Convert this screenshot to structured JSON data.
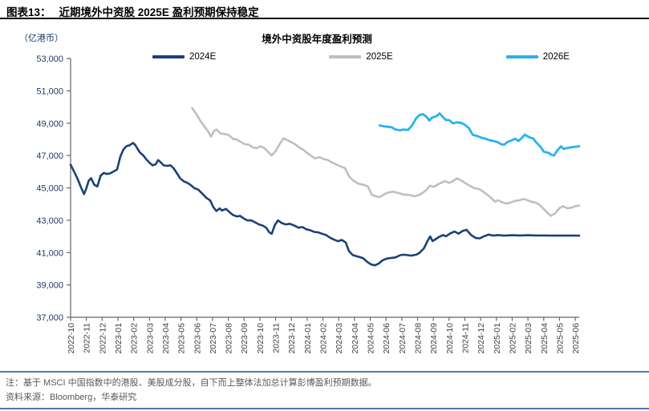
{
  "header": {
    "figure_label": "图表13：",
    "title": "近期境外中资股 2025E 盈利预期保持稳定"
  },
  "notes": {
    "note": "注：基于 MSCI 中国指数中的港股、美股成分股，自下而上整体法加总计算彭博盈利预期数据。",
    "source": "资料来源：Bloomberg，华泰研究"
  },
  "chart_data": {
    "type": "line",
    "title": "境外中资股年度盈利预测",
    "unit_label": "（亿港币）",
    "ylim": [
      37000,
      53000
    ],
    "ytick_step": 2000,
    "grid": "off",
    "legend_position": "top",
    "axis_label_color_y": "#1f3864",
    "axis_label_color_x": "#404040",
    "axis_line_color": "#666666",
    "categories": [
      "2022-10",
      "2022-11",
      "2022-12",
      "2023-01",
      "2023-02",
      "2023-03",
      "2023-04",
      "2023-05",
      "2023-06",
      "2023-07",
      "2023-08",
      "2023-09",
      "2023-10",
      "2023-11",
      "2023-12",
      "2024-01",
      "2024-02",
      "2024-03",
      "2024-04",
      "2024-05",
      "2024-06",
      "2024-07",
      "2024-08",
      "2024-09",
      "2024-10",
      "2024-11",
      "2024-12",
      "2025-01",
      "2025-02",
      "2025-03",
      "2025-04",
      "2025-05",
      "2025-06"
    ],
    "x_unit": "month_index_from_2022-10",
    "series": [
      {
        "name": "2024E",
        "color": "#1b4179",
        "stroke_width": 2.6,
        "points": [
          [
            0,
            46430
          ],
          [
            0.25,
            45950
          ],
          [
            0.45,
            45550
          ],
          [
            0.65,
            45050
          ],
          [
            0.85,
            44620
          ],
          [
            1.0,
            44980
          ],
          [
            1.15,
            45450
          ],
          [
            1.3,
            45600
          ],
          [
            1.5,
            45190
          ],
          [
            1.7,
            45090
          ],
          [
            1.9,
            45760
          ],
          [
            2.1,
            45920
          ],
          [
            2.3,
            45860
          ],
          [
            2.5,
            45890
          ],
          [
            2.75,
            46030
          ],
          [
            2.95,
            46140
          ],
          [
            3.15,
            46920
          ],
          [
            3.35,
            47380
          ],
          [
            3.55,
            47580
          ],
          [
            3.75,
            47640
          ],
          [
            3.95,
            47780
          ],
          [
            4.1,
            47650
          ],
          [
            4.25,
            47400
          ],
          [
            4.4,
            47180
          ],
          [
            4.6,
            47020
          ],
          [
            4.8,
            46760
          ],
          [
            5.0,
            46560
          ],
          [
            5.2,
            46390
          ],
          [
            5.4,
            46460
          ],
          [
            5.55,
            46720
          ],
          [
            5.7,
            46590
          ],
          [
            5.9,
            46390
          ],
          [
            6.1,
            46360
          ],
          [
            6.35,
            46390
          ],
          [
            6.55,
            46190
          ],
          [
            6.75,
            45890
          ],
          [
            6.95,
            45590
          ],
          [
            7.2,
            45390
          ],
          [
            7.4,
            45310
          ],
          [
            7.6,
            45190
          ],
          [
            7.85,
            44980
          ],
          [
            8.1,
            44890
          ],
          [
            8.35,
            44640
          ],
          [
            8.6,
            44390
          ],
          [
            8.85,
            44220
          ],
          [
            9.05,
            43810
          ],
          [
            9.25,
            43570
          ],
          [
            9.45,
            43730
          ],
          [
            9.6,
            43600
          ],
          [
            9.85,
            43700
          ],
          [
            10.1,
            43480
          ],
          [
            10.3,
            43320
          ],
          [
            10.55,
            43230
          ],
          [
            10.75,
            43270
          ],
          [
            11.0,
            43100
          ],
          [
            11.2,
            42990
          ],
          [
            11.45,
            42990
          ],
          [
            11.7,
            42870
          ],
          [
            11.95,
            42740
          ],
          [
            12.2,
            42660
          ],
          [
            12.4,
            42540
          ],
          [
            12.6,
            42250
          ],
          [
            12.75,
            42160
          ],
          [
            12.95,
            42700
          ],
          [
            13.15,
            42990
          ],
          [
            13.4,
            42820
          ],
          [
            13.65,
            42740
          ],
          [
            13.9,
            42780
          ],
          [
            14.2,
            42660
          ],
          [
            14.45,
            42540
          ],
          [
            14.7,
            42580
          ],
          [
            14.95,
            42440
          ],
          [
            15.2,
            42380
          ],
          [
            15.45,
            42280
          ],
          [
            15.7,
            42250
          ],
          [
            15.95,
            42160
          ],
          [
            16.2,
            42080
          ],
          [
            16.45,
            41920
          ],
          [
            16.7,
            41800
          ],
          [
            16.95,
            41700
          ],
          [
            17.2,
            41780
          ],
          [
            17.45,
            41620
          ],
          [
            17.65,
            41090
          ],
          [
            17.9,
            40840
          ],
          [
            18.2,
            40760
          ],
          [
            18.55,
            40650
          ],
          [
            18.8,
            40430
          ],
          [
            19.05,
            40270
          ],
          [
            19.3,
            40210
          ],
          [
            19.55,
            40330
          ],
          [
            19.8,
            40530
          ],
          [
            20.1,
            40640
          ],
          [
            20.35,
            40670
          ],
          [
            20.6,
            40700
          ],
          [
            20.9,
            40840
          ],
          [
            21.1,
            40870
          ],
          [
            21.4,
            40840
          ],
          [
            21.6,
            40810
          ],
          [
            21.9,
            40870
          ],
          [
            22.1,
            40970
          ],
          [
            22.4,
            41260
          ],
          [
            22.65,
            41750
          ],
          [
            22.8,
            42000
          ],
          [
            22.95,
            41710
          ],
          [
            23.1,
            41800
          ],
          [
            23.35,
            41960
          ],
          [
            23.6,
            42080
          ],
          [
            23.8,
            42010
          ],
          [
            24.1,
            42200
          ],
          [
            24.35,
            42300
          ],
          [
            24.6,
            42170
          ],
          [
            24.85,
            42330
          ],
          [
            25.1,
            42410
          ],
          [
            25.4,
            42080
          ],
          [
            25.7,
            41900
          ],
          [
            25.95,
            41880
          ],
          [
            26.2,
            42000
          ],
          [
            26.5,
            42110
          ],
          [
            26.8,
            42050
          ],
          [
            27.1,
            42080
          ],
          [
            27.5,
            42050
          ],
          [
            28.0,
            42070
          ],
          [
            28.5,
            42060
          ],
          [
            29.0,
            42070
          ],
          [
            29.5,
            42060
          ],
          [
            30.0,
            42060
          ],
          [
            30.5,
            42050
          ],
          [
            31.0,
            42050
          ],
          [
            31.5,
            42050
          ],
          [
            32.0,
            42050
          ],
          [
            32.25,
            42050
          ]
        ]
      },
      {
        "name": "2025E",
        "color": "#bfbfbf",
        "stroke_width": 2.6,
        "points": [
          [
            7.7,
            49940
          ],
          [
            8.0,
            49520
          ],
          [
            8.25,
            49110
          ],
          [
            8.5,
            48780
          ],
          [
            8.75,
            48450
          ],
          [
            8.9,
            48170
          ],
          [
            9.1,
            48530
          ],
          [
            9.25,
            48610
          ],
          [
            9.5,
            48370
          ],
          [
            9.75,
            48330
          ],
          [
            10.0,
            48280
          ],
          [
            10.3,
            48030
          ],
          [
            10.5,
            48000
          ],
          [
            10.8,
            47840
          ],
          [
            11.05,
            47700
          ],
          [
            11.3,
            47670
          ],
          [
            11.55,
            47500
          ],
          [
            11.8,
            47450
          ],
          [
            12.05,
            47570
          ],
          [
            12.3,
            47450
          ],
          [
            12.55,
            47200
          ],
          [
            12.75,
            47000
          ],
          [
            13.0,
            47280
          ],
          [
            13.25,
            47700
          ],
          [
            13.5,
            48060
          ],
          [
            13.75,
            47940
          ],
          [
            14.0,
            47830
          ],
          [
            14.25,
            47690
          ],
          [
            14.5,
            47490
          ],
          [
            14.75,
            47360
          ],
          [
            15.0,
            47160
          ],
          [
            15.3,
            46950
          ],
          [
            15.5,
            46830
          ],
          [
            15.8,
            46900
          ],
          [
            16.05,
            46780
          ],
          [
            16.3,
            46730
          ],
          [
            16.6,
            46560
          ],
          [
            16.9,
            46420
          ],
          [
            17.2,
            46300
          ],
          [
            17.4,
            46220
          ],
          [
            17.65,
            45720
          ],
          [
            17.9,
            45470
          ],
          [
            18.25,
            45260
          ],
          [
            18.6,
            45190
          ],
          [
            18.85,
            45090
          ],
          [
            19.1,
            44560
          ],
          [
            19.35,
            44480
          ],
          [
            19.6,
            44430
          ],
          [
            19.95,
            44640
          ],
          [
            20.2,
            44730
          ],
          [
            20.45,
            44760
          ],
          [
            20.8,
            44680
          ],
          [
            21.1,
            44590
          ],
          [
            21.5,
            44560
          ],
          [
            21.8,
            44480
          ],
          [
            22.1,
            44560
          ],
          [
            22.5,
            44810
          ],
          [
            22.8,
            45140
          ],
          [
            23.0,
            45060
          ],
          [
            23.25,
            45190
          ],
          [
            23.5,
            45320
          ],
          [
            23.75,
            45420
          ],
          [
            24.0,
            45310
          ],
          [
            24.25,
            45420
          ],
          [
            24.5,
            45590
          ],
          [
            24.75,
            45470
          ],
          [
            25.0,
            45310
          ],
          [
            25.4,
            45090
          ],
          [
            25.6,
            44980
          ],
          [
            25.9,
            44930
          ],
          [
            26.1,
            44810
          ],
          [
            26.4,
            44590
          ],
          [
            26.65,
            44390
          ],
          [
            26.9,
            44150
          ],
          [
            27.1,
            44230
          ],
          [
            27.4,
            44100
          ],
          [
            27.65,
            44030
          ],
          [
            27.9,
            44100
          ],
          [
            28.2,
            44200
          ],
          [
            28.45,
            44230
          ],
          [
            28.7,
            44310
          ],
          [
            28.9,
            44260
          ],
          [
            29.2,
            44150
          ],
          [
            29.45,
            44100
          ],
          [
            29.7,
            43980
          ],
          [
            29.95,
            43740
          ],
          [
            30.2,
            43490
          ],
          [
            30.45,
            43270
          ],
          [
            30.7,
            43400
          ],
          [
            31.0,
            43740
          ],
          [
            31.2,
            43870
          ],
          [
            31.5,
            43740
          ],
          [
            31.75,
            43770
          ],
          [
            32.0,
            43870
          ],
          [
            32.25,
            43900
          ]
        ]
      },
      {
        "name": "2026E",
        "color": "#29b2ee",
        "stroke_width": 2.8,
        "points": [
          [
            19.6,
            48860
          ],
          [
            19.85,
            48810
          ],
          [
            20.1,
            48780
          ],
          [
            20.35,
            48750
          ],
          [
            20.6,
            48610
          ],
          [
            20.9,
            48560
          ],
          [
            21.1,
            48610
          ],
          [
            21.4,
            48580
          ],
          [
            21.65,
            48860
          ],
          [
            21.9,
            49280
          ],
          [
            22.1,
            49490
          ],
          [
            22.35,
            49560
          ],
          [
            22.6,
            49360
          ],
          [
            22.75,
            49160
          ],
          [
            22.9,
            49330
          ],
          [
            23.2,
            49440
          ],
          [
            23.4,
            49600
          ],
          [
            23.6,
            49390
          ],
          [
            23.8,
            49190
          ],
          [
            24.0,
            49190
          ],
          [
            24.25,
            48990
          ],
          [
            24.5,
            49050
          ],
          [
            24.75,
            49020
          ],
          [
            25.0,
            48900
          ],
          [
            25.25,
            48700
          ],
          [
            25.5,
            48280
          ],
          [
            25.8,
            48200
          ],
          [
            26.0,
            48120
          ],
          [
            26.3,
            48040
          ],
          [
            26.55,
            47950
          ],
          [
            26.8,
            47900
          ],
          [
            27.05,
            47840
          ],
          [
            27.3,
            47700
          ],
          [
            27.5,
            47670
          ],
          [
            27.7,
            47840
          ],
          [
            28.0,
            47950
          ],
          [
            28.2,
            48040
          ],
          [
            28.4,
            47900
          ],
          [
            28.6,
            48070
          ],
          [
            28.8,
            48290
          ],
          [
            29.1,
            48120
          ],
          [
            29.35,
            48040
          ],
          [
            29.5,
            47840
          ],
          [
            29.8,
            47540
          ],
          [
            30.0,
            47240
          ],
          [
            30.3,
            47170
          ],
          [
            30.5,
            47040
          ],
          [
            30.65,
            47000
          ],
          [
            30.9,
            47370
          ],
          [
            31.1,
            47570
          ],
          [
            31.25,
            47410
          ],
          [
            31.5,
            47460
          ],
          [
            31.75,
            47510
          ],
          [
            32.0,
            47540
          ],
          [
            32.25,
            47570
          ]
        ]
      }
    ]
  }
}
